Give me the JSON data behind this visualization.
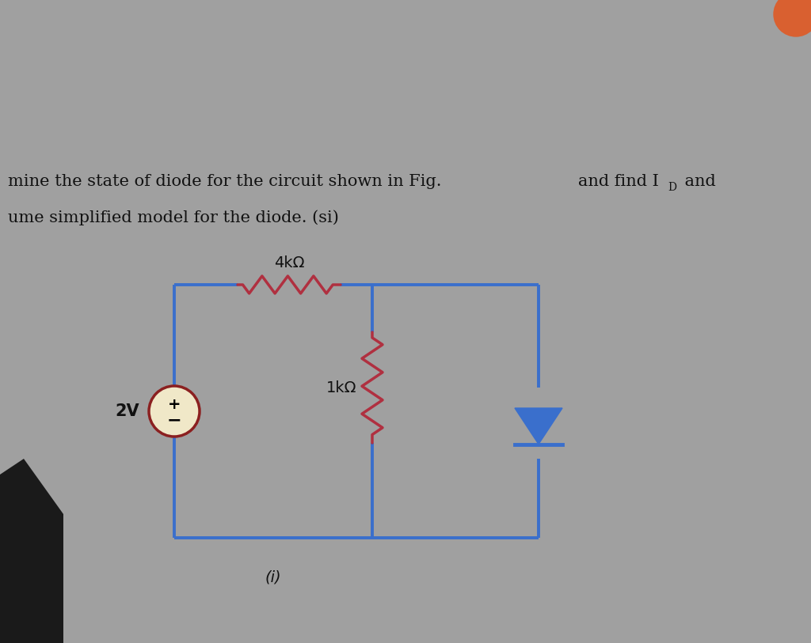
{
  "bg_color": "#a0a0a0",
  "wire_color": "#3a6fcc",
  "resistor_color": "#b03040",
  "diode_color": "#3a6fcc",
  "text_color": "#111111",
  "source_border_color": "#8b2020",
  "source_fill_color": "#f0e8c8",
  "title_line1": "mine the state of diode for the circuit shown in Fig.",
  "title_line1b": "and find I",
  "title_line1_sub": "D",
  "title_line1_end": " and",
  "title_line2": "ume simplified model for the diode. (si)",
  "label_i": "(i)",
  "label_4k": "4kΩ",
  "label_1k": "1kΩ",
  "label_2v": "2V",
  "shadow_color": "#303030",
  "orange_color": "#d96030"
}
